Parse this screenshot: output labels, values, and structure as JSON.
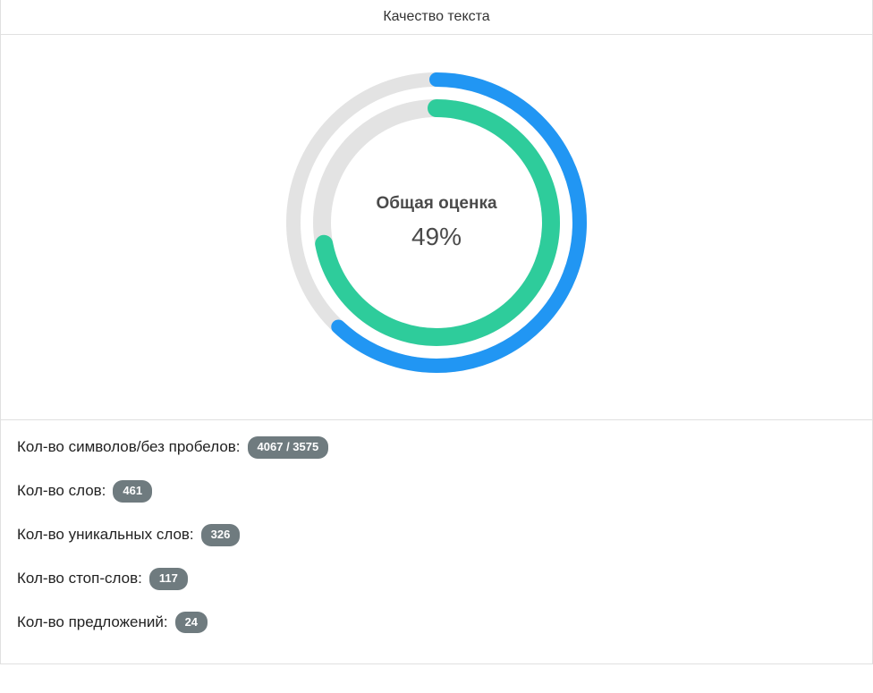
{
  "header": {
    "title": "Качество текста"
  },
  "score_chart": {
    "type": "donut-dual-ring",
    "label": "Общая оценка",
    "value_display": "49%",
    "outer": {
      "percent": 62,
      "color": "#2196f3",
      "track_color": "#e3e3e3",
      "stroke_width": 16,
      "radius": 160
    },
    "inner": {
      "percent": 72,
      "color": "#2ecc9b",
      "track_color": "#e3e3e3",
      "stroke_width": 20,
      "radius": 128
    },
    "background_color": "#ffffff",
    "label_color": "#4a4a4a",
    "label_fontsize": 19,
    "value_fontsize": 28
  },
  "stats": [
    {
      "label": "Кол-во символов/без пробелов:",
      "value": "4067 / 3575"
    },
    {
      "label": "Кол-во слов:",
      "value": "461"
    },
    {
      "label": "Кол-во уникальных слов:",
      "value": "326"
    },
    {
      "label": "Кол-во стоп-слов:",
      "value": "117"
    },
    {
      "label": "Кол-во предложений:",
      "value": "24"
    }
  ],
  "badge_style": {
    "background_color": "#6f7b7f",
    "text_color": "#ffffff",
    "fontsize": 13,
    "border_radius": 11
  }
}
